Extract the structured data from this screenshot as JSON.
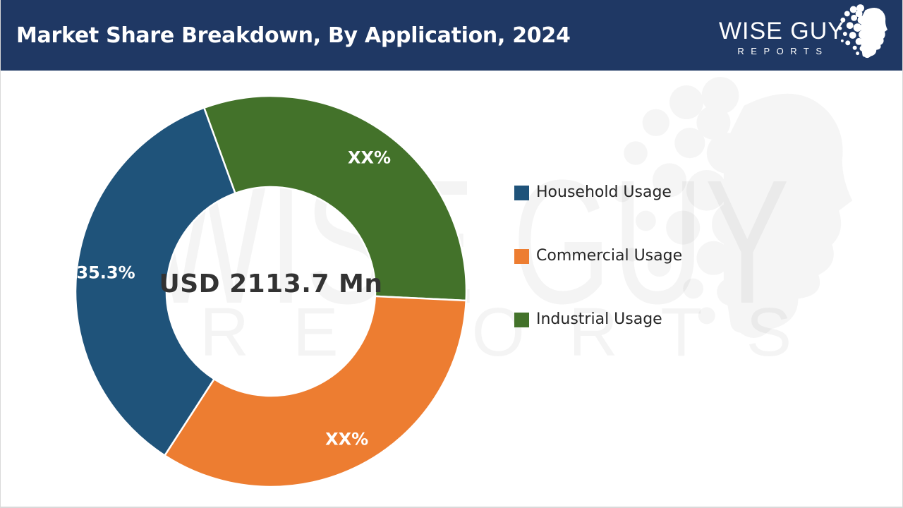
{
  "header": {
    "title": "Market Share Breakdown, By Application, 2024",
    "logo": {
      "line1": "WISE GUY",
      "line2": "REPORTS"
    }
  },
  "watermark": {
    "line1": "WISE GUY",
    "line2": "REPORTS"
  },
  "chart_data": {
    "type": "donut",
    "title": "Market Share Breakdown, By Application, 2024",
    "center_label": "USD 2113.7 Mn",
    "start_angle_deg": 340,
    "outer_radius_px": 277,
    "inner_radius_px": 148,
    "segments": [
      {
        "name": "Industrial Usage",
        "value_label": "XX%",
        "percent_est": 31.3,
        "color": "#43722A"
      },
      {
        "name": "Commercial Usage",
        "value_label": "XX%",
        "percent_est": 33.4,
        "color": "#ED7D31"
      },
      {
        "name": "Household Usage",
        "value_label": "35.3%",
        "percent_est": 35.3,
        "color": "#1F537A"
      }
    ],
    "legend": [
      {
        "label": "Household Usage",
        "color": "#1F537A"
      },
      {
        "label": "Commercial Usage",
        "color": "#ED7D31"
      },
      {
        "label": "Industrial Usage",
        "color": "#43722A"
      }
    ],
    "legend_position": "right"
  },
  "colors": {
    "header_bg": "#1F3864",
    "page_border": "#D9D9D9",
    "center_text": "#333333",
    "legend_text": "#262626",
    "segment_label_text": "#FFFFFF"
  }
}
